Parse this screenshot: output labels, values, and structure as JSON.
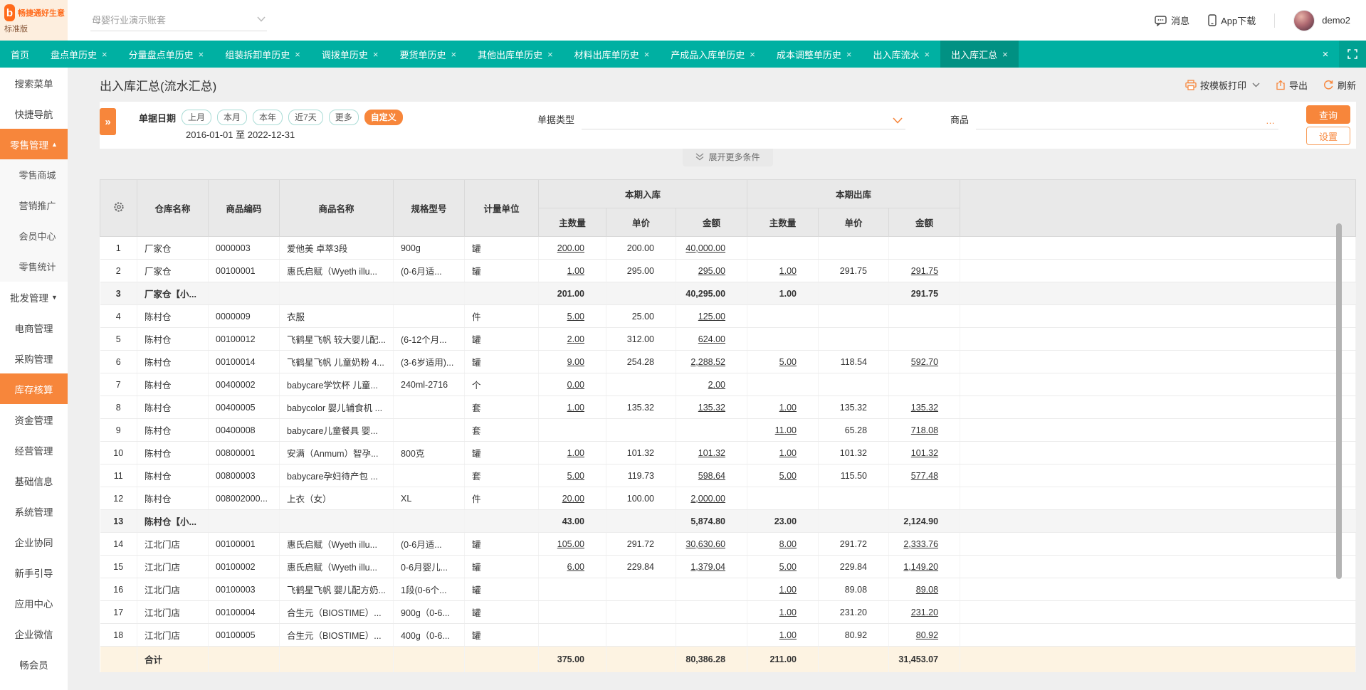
{
  "colors": {
    "accent_orange": "#f7863b",
    "teal_bar": "#00b0a2",
    "teal_active_tab": "#019183",
    "logo_orange": "#ff6a1a",
    "total_row_bg": "#fdf3e2",
    "subtotal_row_bg": "#f5f5f5"
  },
  "icons": {
    "collapse": "»",
    "ellipsis": "…",
    "caret_up": "▲",
    "caret_down": "▼",
    "close": "×",
    "chevron_down": "∨"
  },
  "topbar": {
    "logo_title": "畅捷通好生意",
    "logo_mark": "b",
    "logo_subtitle": "标准版",
    "account_select": "母婴行业演示账套",
    "messages_label": "消息",
    "app_download_label": "App下载",
    "username": "demo2"
  },
  "tabs": {
    "items": [
      {
        "label": "首页",
        "closable": false,
        "active": false
      },
      {
        "label": "盘点单历史",
        "closable": true,
        "active": false
      },
      {
        "label": "分量盘点单历史",
        "closable": true,
        "active": false
      },
      {
        "label": "组装拆卸单历史",
        "closable": true,
        "active": false
      },
      {
        "label": "调拨单历史",
        "closable": true,
        "active": false
      },
      {
        "label": "要货单历史",
        "closable": true,
        "active": false
      },
      {
        "label": "其他出库单历史",
        "closable": true,
        "active": false
      },
      {
        "label": "材料出库单历史",
        "closable": true,
        "active": false
      },
      {
        "label": "产成品入库单历史",
        "closable": true,
        "active": false
      },
      {
        "label": "成本调整单历史",
        "closable": true,
        "active": false
      },
      {
        "label": "出入库流水",
        "closable": true,
        "active": false
      },
      {
        "label": "出入库汇总",
        "closable": true,
        "active": true
      }
    ]
  },
  "sidebar": {
    "items": [
      {
        "label": "搜索菜单",
        "type": "item"
      },
      {
        "label": "快捷导航",
        "type": "item"
      },
      {
        "label": "零售管理",
        "type": "active",
        "caret": "up"
      },
      {
        "label": "零售商城",
        "type": "sub"
      },
      {
        "label": "营销推广",
        "type": "sub"
      },
      {
        "label": "会员中心",
        "type": "sub"
      },
      {
        "label": "零售统计",
        "type": "sub"
      },
      {
        "label": "批发管理",
        "type": "item",
        "caret": "down"
      },
      {
        "label": "电商管理",
        "type": "item"
      },
      {
        "label": "采购管理",
        "type": "item"
      },
      {
        "label": "库存核算",
        "type": "active"
      },
      {
        "label": "资金管理",
        "type": "item"
      },
      {
        "label": "经营管理",
        "type": "item"
      },
      {
        "label": "基础信息",
        "type": "item"
      },
      {
        "label": "系统管理",
        "type": "item"
      },
      {
        "label": "企业协同",
        "type": "item"
      },
      {
        "label": "新手引导",
        "type": "item"
      },
      {
        "label": "应用中心",
        "type": "item"
      },
      {
        "label": "企业微信",
        "type": "item"
      },
      {
        "label": "畅会员",
        "type": "item"
      }
    ]
  },
  "page": {
    "title": "出入库汇总(流水汇总)",
    "actions": {
      "print": "按模板打印",
      "export": "导出",
      "refresh": "刷新"
    }
  },
  "filters": {
    "date_label": "单据日期",
    "date_pills": [
      "上月",
      "本月",
      "本年",
      "近7天",
      "更多"
    ],
    "custom_pill": "自定义",
    "date_range": "2016-01-01 至 2022-12-31",
    "doc_type_label": "单据类型",
    "product_label": "商品",
    "query_button": "查询",
    "settings_button": "设置",
    "expand_more": "展开更多条件"
  },
  "table": {
    "headers": {
      "warehouse": "仓库名称",
      "code": "商品编码",
      "name": "商品名称",
      "spec": "规格型号",
      "unit": "计量单位",
      "group_in": "本期入库",
      "group_out": "本期出库",
      "qty": "主数量",
      "price": "单价",
      "amount": "金额"
    },
    "rows": [
      {
        "type": "data",
        "n": "1",
        "warehouse": "厂家仓",
        "code": "0000003",
        "name": "爱他美 卓萃3段",
        "spec": "900g",
        "unit": "罐",
        "in_qty": "200.00",
        "in_price": "200.00",
        "in_amt": "40,000.00",
        "out_qty": "",
        "out_price": "",
        "out_amt": ""
      },
      {
        "type": "data",
        "n": "2",
        "warehouse": "厂家仓",
        "code": "00100001",
        "name": "惠氏启赋（Wyeth illu...",
        "spec": "(0-6月适...",
        "unit": "罐",
        "in_qty": "1.00",
        "in_price": "295.00",
        "in_amt": "295.00",
        "out_qty": "1.00",
        "out_price": "291.75",
        "out_amt": "291.75"
      },
      {
        "type": "subtotal",
        "n": "3",
        "warehouse": "厂家仓【小...",
        "code": "",
        "name": "",
        "spec": "",
        "unit": "",
        "in_qty": "201.00",
        "in_price": "",
        "in_amt": "40,295.00",
        "out_qty": "1.00",
        "out_price": "",
        "out_amt": "291.75"
      },
      {
        "type": "data",
        "n": "4",
        "warehouse": "陈村仓",
        "code": "0000009",
        "name": "衣服",
        "spec": "",
        "unit": "件",
        "in_qty": "5.00",
        "in_price": "25.00",
        "in_amt": "125.00",
        "out_qty": "",
        "out_price": "",
        "out_amt": ""
      },
      {
        "type": "data",
        "n": "5",
        "warehouse": "陈村仓",
        "code": "00100012",
        "name": "飞鹤星飞帆 较大婴儿配...",
        "spec": "(6-12个月...",
        "unit": "罐",
        "in_qty": "2.00",
        "in_price": "312.00",
        "in_amt": "624.00",
        "out_qty": "",
        "out_price": "",
        "out_amt": ""
      },
      {
        "type": "data",
        "n": "6",
        "warehouse": "陈村仓",
        "code": "00100014",
        "name": "飞鹤星飞帆 儿童奶粉 4...",
        "spec": "(3-6岁适用)...",
        "unit": "罐",
        "in_qty": "9.00",
        "in_price": "254.28",
        "in_amt": "2,288.52",
        "out_qty": "5.00",
        "out_price": "118.54",
        "out_amt": "592.70"
      },
      {
        "type": "data",
        "n": "7",
        "warehouse": "陈村仓",
        "code": "00400002",
        "name": "babycare学饮杯 儿童...",
        "spec": "240ml-2716",
        "unit": "个",
        "in_qty": "0.00",
        "in_price": "",
        "in_amt": "2.00",
        "out_qty": "",
        "out_price": "",
        "out_amt": ""
      },
      {
        "type": "data",
        "n": "8",
        "warehouse": "陈村仓",
        "code": "00400005",
        "name": "babycolor 婴儿辅食机 ...",
        "spec": "",
        "unit": "套",
        "in_qty": "1.00",
        "in_price": "135.32",
        "in_amt": "135.32",
        "out_qty": "1.00",
        "out_price": "135.32",
        "out_amt": "135.32"
      },
      {
        "type": "data",
        "n": "9",
        "warehouse": "陈村仓",
        "code": "00400008",
        "name": "babycare儿童餐具 婴...",
        "spec": "",
        "unit": "套",
        "in_qty": "",
        "in_price": "",
        "in_amt": "",
        "out_qty": "11.00",
        "out_price": "65.28",
        "out_amt": "718.08"
      },
      {
        "type": "data",
        "n": "10",
        "warehouse": "陈村仓",
        "code": "00800001",
        "name": "安满（Anmum）智孕...",
        "spec": "800克",
        "unit": "罐",
        "in_qty": "1.00",
        "in_price": "101.32",
        "in_amt": "101.32",
        "out_qty": "1.00",
        "out_price": "101.32",
        "out_amt": "101.32"
      },
      {
        "type": "data",
        "n": "11",
        "warehouse": "陈村仓",
        "code": "00800003",
        "name": "babycare孕妇待产包 ...",
        "spec": "",
        "unit": "套",
        "in_qty": "5.00",
        "in_price": "119.73",
        "in_amt": "598.64",
        "out_qty": "5.00",
        "out_price": "115.50",
        "out_amt": "577.48"
      },
      {
        "type": "data",
        "n": "12",
        "warehouse": "陈村仓",
        "code": "008002000...",
        "name": "上衣（女）",
        "spec": "XL",
        "unit": "件",
        "in_qty": "20.00",
        "in_price": "100.00",
        "in_amt": "2,000.00",
        "out_qty": "",
        "out_price": "",
        "out_amt": ""
      },
      {
        "type": "subtotal",
        "n": "13",
        "warehouse": "陈村仓【小...",
        "code": "",
        "name": "",
        "spec": "",
        "unit": "",
        "in_qty": "43.00",
        "in_price": "",
        "in_amt": "5,874.80",
        "out_qty": "23.00",
        "out_price": "",
        "out_amt": "2,124.90"
      },
      {
        "type": "data",
        "n": "14",
        "warehouse": "江北门店",
        "code": "00100001",
        "name": "惠氏启赋（Wyeth illu...",
        "spec": "(0-6月适...",
        "unit": "罐",
        "in_qty": "105.00",
        "in_price": "291.72",
        "in_amt": "30,630.60",
        "out_qty": "8.00",
        "out_price": "291.72",
        "out_amt": "2,333.76"
      },
      {
        "type": "data",
        "n": "15",
        "warehouse": "江北门店",
        "code": "00100002",
        "name": "惠氏启赋（Wyeth illu...",
        "spec": "0-6月婴儿...",
        "unit": "罐",
        "in_qty": "6.00",
        "in_price": "229.84",
        "in_amt": "1,379.04",
        "out_qty": "5.00",
        "out_price": "229.84",
        "out_amt": "1,149.20"
      },
      {
        "type": "data",
        "n": "16",
        "warehouse": "江北门店",
        "code": "00100003",
        "name": "飞鹤星飞帆 婴儿配方奶...",
        "spec": "1段(0-6个...",
        "unit": "罐",
        "in_qty": "",
        "in_price": "",
        "in_amt": "",
        "out_qty": "1.00",
        "out_price": "89.08",
        "out_amt": "89.08"
      },
      {
        "type": "data",
        "n": "17",
        "warehouse": "江北门店",
        "code": "00100004",
        "name": "合生元（BIOSTIME）...",
        "spec": "900g（0-6...",
        "unit": "罐",
        "in_qty": "",
        "in_price": "",
        "in_amt": "",
        "out_qty": "1.00",
        "out_price": "231.20",
        "out_amt": "231.20"
      },
      {
        "type": "data",
        "n": "18",
        "warehouse": "江北门店",
        "code": "00100005",
        "name": "合生元（BIOSTIME）...",
        "spec": "400g（0-6...",
        "unit": "罐",
        "in_qty": "",
        "in_price": "",
        "in_amt": "",
        "out_qty": "1.00",
        "out_price": "80.92",
        "out_amt": "80.92"
      },
      {
        "type": "total",
        "n": "",
        "warehouse": "合计",
        "code": "",
        "name": "",
        "spec": "",
        "unit": "",
        "in_qty": "375.00",
        "in_price": "",
        "in_amt": "80,386.28",
        "out_qty": "211.00",
        "out_price": "",
        "out_amt": "31,453.07"
      }
    ]
  }
}
